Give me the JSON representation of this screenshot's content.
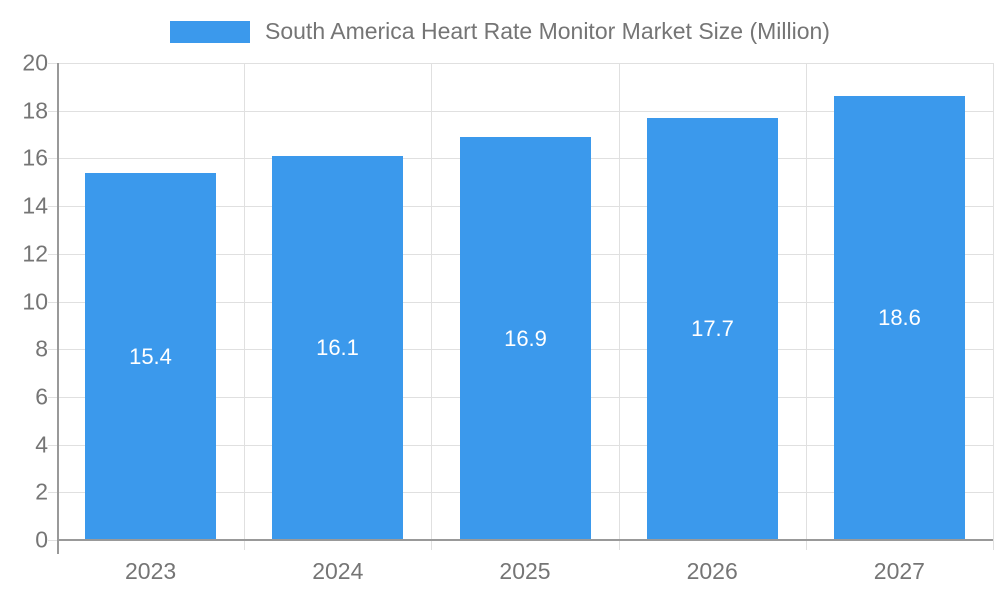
{
  "legend": {
    "label": "South America Heart Rate Monitor Market Size (Million)"
  },
  "chart_data": {
    "type": "bar",
    "title": "South America Heart Rate Monitor Market Size (Million)",
    "categories": [
      "2023",
      "2024",
      "2025",
      "2026",
      "2027"
    ],
    "values": [
      15.4,
      16.1,
      16.9,
      17.7,
      18.6
    ],
    "value_labels": [
      "15.4",
      "16.1",
      "16.9",
      "17.7",
      "18.6"
    ],
    "xlabel": "",
    "ylabel": "",
    "ylim": [
      0,
      20
    ],
    "ytick_step": 2,
    "ytick_labels": [
      "0",
      "2",
      "4",
      "6",
      "8",
      "10",
      "12",
      "14",
      "16",
      "18",
      "20"
    ],
    "grid": true,
    "legend_position": "top",
    "colors": {
      "bar": "#3b99ec",
      "value_label": "#ffffff",
      "axis_text": "#757575",
      "gridline": "#e0e0e0",
      "axis_line": "#999999",
      "background": "#ffffff"
    }
  }
}
